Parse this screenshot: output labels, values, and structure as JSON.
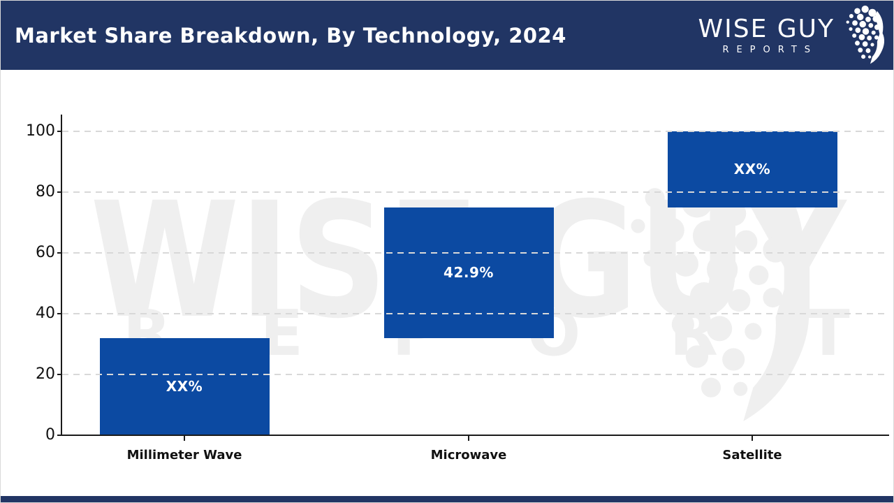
{
  "header": {
    "title": "Market Share Breakdown, By Technology, 2024",
    "bg_color": "#213564",
    "logo": {
      "line1": "WISE GUY",
      "line2": "REPORTS",
      "face_icon": "face-profile-dots-icon",
      "color": "#ffffff"
    }
  },
  "watermark": {
    "line1": "WISE GUY",
    "line2": "R E P O R T S",
    "face_icon": "face-profile-dots-icon",
    "color": "#efefef"
  },
  "chart_data": {
    "type": "bar",
    "subtype": "waterfall",
    "title": "Market Share Breakdown, By Technology, 2024",
    "categories": [
      "Millimeter Wave",
      "Microwave",
      "Satellite"
    ],
    "series": [
      {
        "name": "Market share (%)",
        "segments": [
          {
            "category": "Millimeter Wave",
            "start": 0,
            "end": 32,
            "value_label": "XX%"
          },
          {
            "category": "Microwave",
            "start": 32,
            "end": 75,
            "value": 42.9,
            "value_label": "42.9%"
          },
          {
            "category": "Satellite",
            "start": 75,
            "end": 100,
            "value_label": "XX%"
          }
        ]
      }
    ],
    "xlabel": "",
    "ylabel": "",
    "ylim": [
      0,
      105
    ],
    "yticks": [
      0,
      20,
      40,
      60,
      80,
      100
    ],
    "grid": {
      "axis": "y",
      "style": "dashed",
      "color": "#d8d8d8"
    },
    "legend": "none",
    "bar_color": "#0c4aa2",
    "bar_label_color": "#ffffff",
    "axis_color": "#1a1a1a",
    "tick_label_color": "#111111"
  },
  "footer": {
    "bar_color": "#213564"
  }
}
